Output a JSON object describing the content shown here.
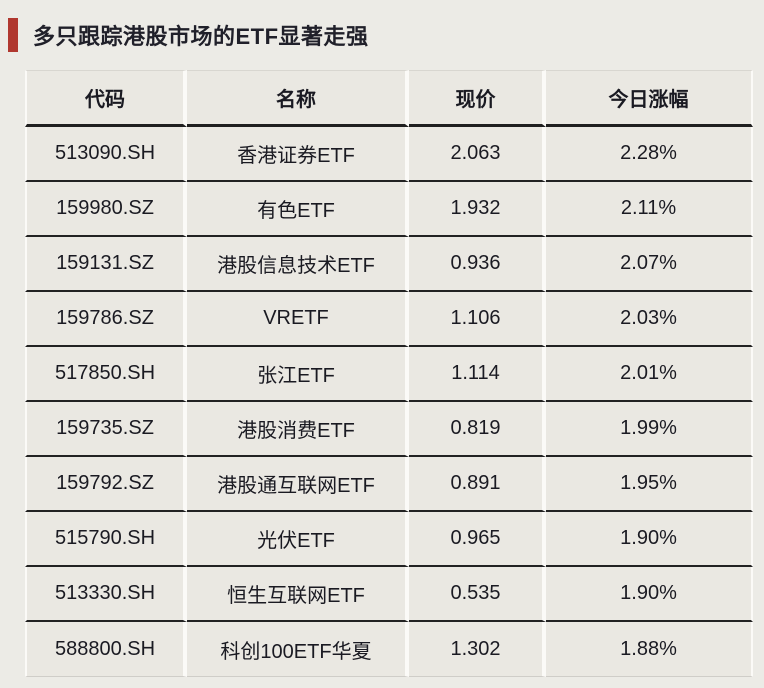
{
  "page": {
    "title": "多只跟踪港股市场的ETF显著走强"
  },
  "colors": {
    "accent_red": "#b0372f",
    "page_bg": "#ecebe6",
    "cell_bg": "#eae8e2",
    "dark_border": "#1f1f1f",
    "column_gap": "#fbfaf7",
    "text": "#1a1a22"
  },
  "chart_data": {
    "type": "table",
    "title": "多只跟踪港股市场的ETF显著走强",
    "columns": [
      "代码",
      "名称",
      "现价",
      "今日涨幅"
    ],
    "rows": [
      {
        "code": "513090.SH",
        "name": "香港证券ETF",
        "price": "2.063",
        "change": "2.28%"
      },
      {
        "code": "159980.SZ",
        "name": "有色ETF",
        "price": "1.932",
        "change": "2.11%"
      },
      {
        "code": "159131.SZ",
        "name": "港股信息技术ETF",
        "price": "0.936",
        "change": "2.07%"
      },
      {
        "code": "159786.SZ",
        "name": "VRETF",
        "price": "1.106",
        "change": "2.03%"
      },
      {
        "code": "517850.SH",
        "name": "张江ETF",
        "price": "1.114",
        "change": "2.01%"
      },
      {
        "code": "159735.SZ",
        "name": "港股消费ETF",
        "price": "0.819",
        "change": "1.99%"
      },
      {
        "code": "159792.SZ",
        "name": "港股通互联网ETF",
        "price": "0.891",
        "change": "1.95%"
      },
      {
        "code": "515790.SH",
        "name": "光伏ETF",
        "price": "0.965",
        "change": "1.90%"
      },
      {
        "code": "513330.SH",
        "name": "恒生互联网ETF",
        "price": "0.535",
        "change": "1.90%"
      },
      {
        "code": "588800.SH",
        "name": "科创100ETF华夏",
        "price": "1.302",
        "change": "1.88%"
      }
    ]
  }
}
